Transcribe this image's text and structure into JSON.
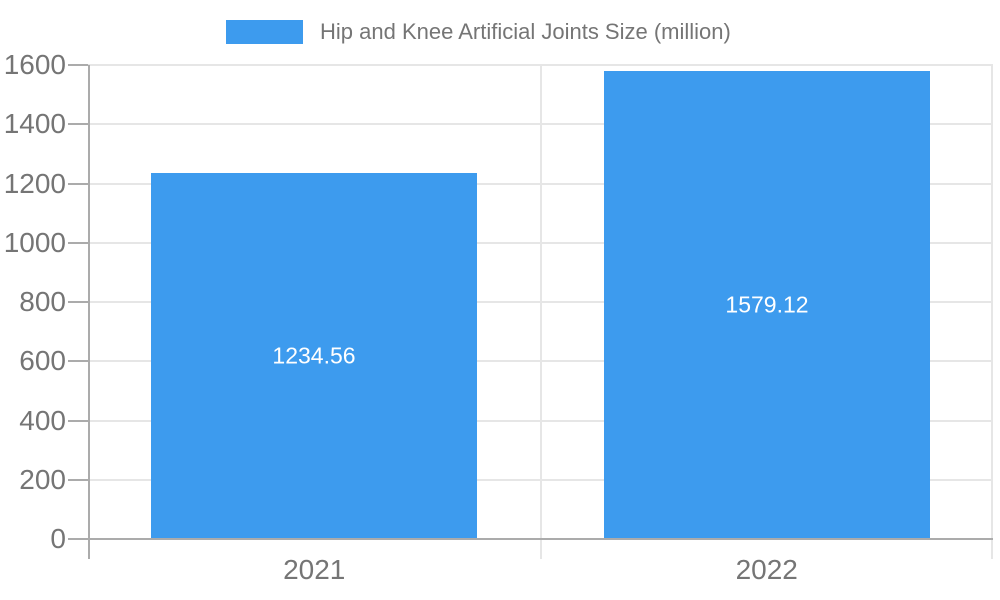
{
  "legend": {
    "label": "Hip and Knee Artificial Joints Size (million)",
    "position": "top-center"
  },
  "chart_data": {
    "type": "bar",
    "title": "Hip and Knee Artificial Joints Size (million)",
    "categories": [
      "2021",
      "2022"
    ],
    "values": [
      1234.56,
      1579.12
    ],
    "value_labels": [
      "1234.56",
      "1579.12"
    ],
    "series": [
      {
        "name": "Hip and Knee Artificial Joints Size (million)",
        "values": [
          1234.56,
          1579.12
        ]
      }
    ],
    "xlabel": "",
    "ylabel": "",
    "ylim": [
      0,
      1600
    ],
    "yticks": [
      0,
      200,
      400,
      600,
      800,
      1000,
      1200,
      1400,
      1600
    ],
    "grid": true,
    "legend_position": "top",
    "value_label_position": "center-of-bar"
  },
  "colors": {
    "bar": "#3D9BEE",
    "axis_text": "#757575",
    "legend_text": "#757575",
    "value_text": "#FFFFFF",
    "axis_line": "#ABABAB",
    "gridline": "#E6E6E6",
    "background": "#FFFFFF"
  }
}
